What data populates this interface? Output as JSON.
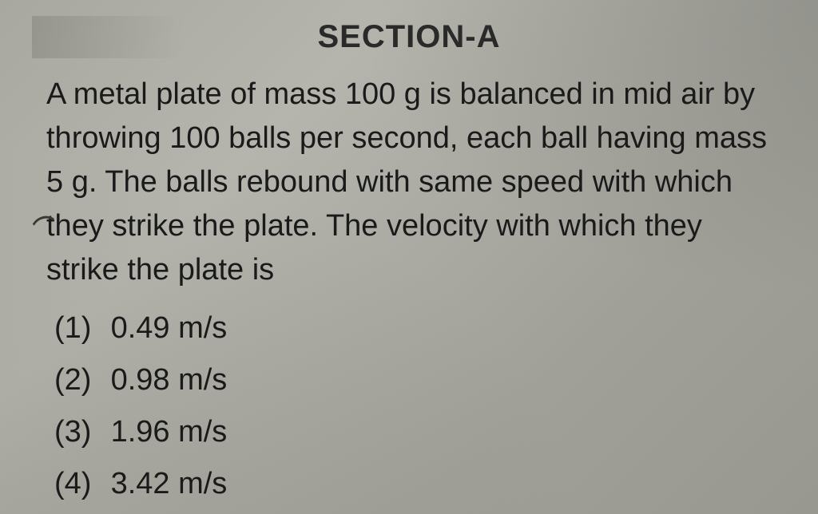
{
  "section": {
    "header": "SECTION-A"
  },
  "question": {
    "text": "A metal plate of mass 100 g is balanced in mid air by throwing 100 balls per second, each ball having mass 5 g. The balls rebound with same speed with which they strike the plate. The velocity with which they strike the plate is"
  },
  "options": [
    {
      "num": "(1)",
      "text": "0.49 m/s"
    },
    {
      "num": "(2)",
      "text": "0.98 m/s"
    },
    {
      "num": "(3)",
      "text": "1.96 m/s"
    },
    {
      "num": "(4)",
      "text": "3.42 m/s"
    }
  ],
  "styling": {
    "background_color": "#a8a8a0",
    "text_color": "#1a1a1a",
    "header_fontsize": 40,
    "body_fontsize": 38,
    "font_family": "Arial"
  }
}
